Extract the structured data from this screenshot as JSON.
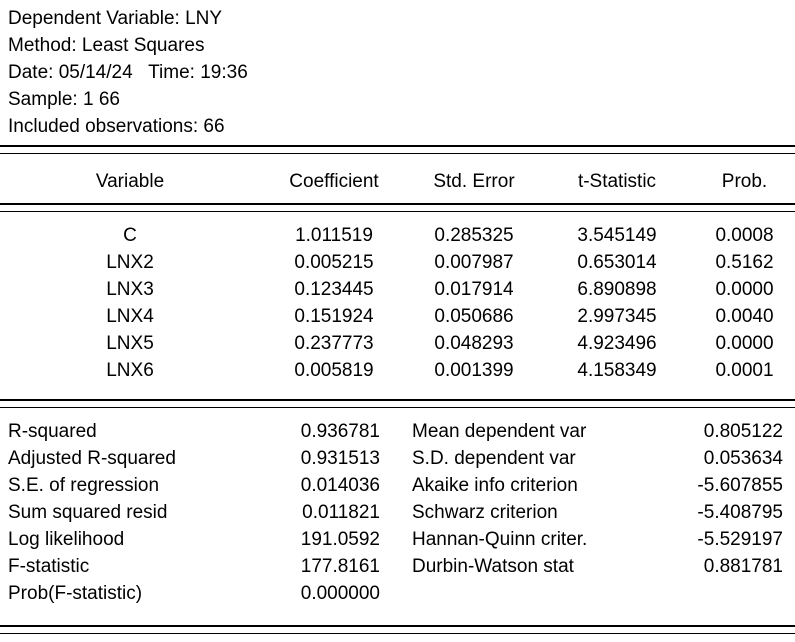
{
  "colors": {
    "text": "#000000",
    "background": "#ffffff",
    "rule": "#000000"
  },
  "title_block": {
    "lines": [
      "Dependent Variable: LNY",
      "Method: Least Squares",
      "Date: 05/14/24   Time: 19:36",
      "Sample: 1 66",
      "Included observations: 66"
    ]
  },
  "coef_table": {
    "headers": {
      "variable": "Variable",
      "coefficient": "Coefficient",
      "std_error": "Std. Error",
      "t_statistic": "t-Statistic",
      "prob": "Prob."
    },
    "rows": [
      {
        "variable": "C",
        "coefficient": "1.011519",
        "std_error": "0.285325",
        "t_statistic": "3.545149",
        "prob": "0.0008"
      },
      {
        "variable": "LNX2",
        "coefficient": "0.005215",
        "std_error": "0.007987",
        "t_statistic": "0.653014",
        "prob": "0.5162"
      },
      {
        "variable": "LNX3",
        "coefficient": "0.123445",
        "std_error": "0.017914",
        "t_statistic": "6.890898",
        "prob": "0.0000"
      },
      {
        "variable": "LNX4",
        "coefficient": "0.151924",
        "std_error": "0.050686",
        "t_statistic": "2.997345",
        "prob": "0.0040"
      },
      {
        "variable": "LNX5",
        "coefficient": "0.237773",
        "std_error": "0.048293",
        "t_statistic": "4.923496",
        "prob": "0.0000"
      },
      {
        "variable": "LNX6",
        "coefficient": "0.005819",
        "std_error": "0.001399",
        "t_statistic": "4.158349",
        "prob": "0.0001"
      }
    ]
  },
  "summary_stats": {
    "left": [
      {
        "label": "R-squared",
        "value": "0.936781"
      },
      {
        "label": "Adjusted R-squared",
        "value": "0.931513"
      },
      {
        "label": "S.E. of regression",
        "value": "0.014036"
      },
      {
        "label": "Sum squared resid",
        "value": "0.011821"
      },
      {
        "label": "Log likelihood",
        "value": "191.0592"
      },
      {
        "label": "F-statistic",
        "value": "177.8161"
      },
      {
        "label": "Prob(F-statistic)",
        "value": "0.000000"
      }
    ],
    "right": [
      {
        "label": "Mean dependent var",
        "value": "0.805122"
      },
      {
        "label": "S.D. dependent var",
        "value": "0.053634"
      },
      {
        "label": "Akaike info criterion",
        "value": "-5.607855"
      },
      {
        "label": "Schwarz criterion",
        "value": "-5.408795"
      },
      {
        "label": "Hannan-Quinn criter.",
        "value": "-5.529197"
      },
      {
        "label": "Durbin-Watson stat",
        "value": "0.881781"
      }
    ]
  }
}
